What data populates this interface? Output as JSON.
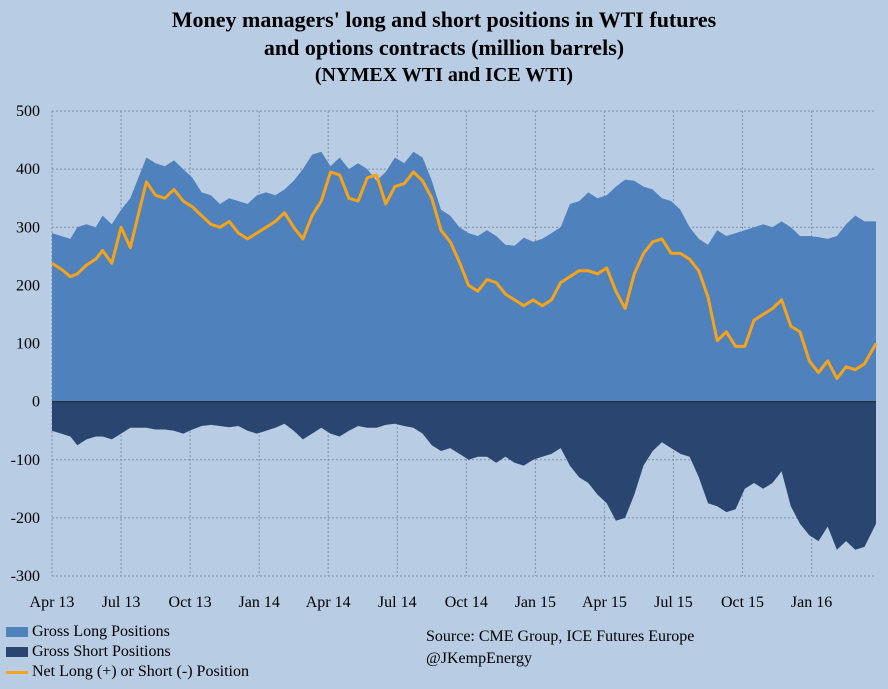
{
  "title_lines": [
    "Money managers' long and short positions in WTI futures",
    "and options contracts (million barrels)"
  ],
  "subtitle": "(NYMEX WTI and ICE WTI)",
  "source": "Source:  CME Group, ICE Futures Europe",
  "handle": "@JKempEnergy",
  "colors": {
    "background": "#b8cce4",
    "long": "#4f81bd",
    "short": "#2a4670",
    "net": "#f5a31b",
    "grid": "#7f8fa6"
  },
  "chart_data": {
    "type": "area",
    "xlabel": "",
    "ylabel": "",
    "ylim": [
      -300,
      500
    ],
    "yticks": [
      -300,
      -200,
      -100,
      0,
      100,
      200,
      300,
      400,
      500
    ],
    "grid": true,
    "legend_position": "bottom-left",
    "x_tick_labels": [
      "Apr 13",
      "Jul 13",
      "Oct 13",
      "Jan 14",
      "Apr 14",
      "Jul 14",
      "Oct 14",
      "Jan 15",
      "Apr 15",
      "Jul 15",
      "Oct 15",
      "Jan 16"
    ],
    "x_tick_months": [
      0,
      3,
      6,
      9,
      12,
      15,
      18,
      21,
      24,
      27,
      30,
      33
    ],
    "x_range_months": [
      0,
      35.8
    ],
    "series": [
      {
        "name": "Gross Long Positions",
        "kind": "area",
        "points": [
          [
            0,
            290
          ],
          [
            0.4,
            285
          ],
          [
            0.8,
            280
          ],
          [
            1.1,
            300
          ],
          [
            1.5,
            305
          ],
          [
            1.9,
            300
          ],
          [
            2.2,
            320
          ],
          [
            2.6,
            305
          ],
          [
            3.0,
            330
          ],
          [
            3.4,
            350
          ],
          [
            3.8,
            390
          ],
          [
            4.1,
            420
          ],
          [
            4.5,
            410
          ],
          [
            4.9,
            405
          ],
          [
            5.3,
            415
          ],
          [
            5.7,
            400
          ],
          [
            6.1,
            385
          ],
          [
            6.5,
            360
          ],
          [
            6.9,
            355
          ],
          [
            7.3,
            340
          ],
          [
            7.7,
            350
          ],
          [
            8.1,
            345
          ],
          [
            8.5,
            340
          ],
          [
            8.9,
            355
          ],
          [
            9.3,
            360
          ],
          [
            9.7,
            355
          ],
          [
            10.1,
            365
          ],
          [
            10.5,
            380
          ],
          [
            10.9,
            400
          ],
          [
            11.3,
            425
          ],
          [
            11.7,
            430
          ],
          [
            12.1,
            405
          ],
          [
            12.5,
            420
          ],
          [
            12.9,
            400
          ],
          [
            13.3,
            410
          ],
          [
            13.7,
            400
          ],
          [
            14.1,
            380
          ],
          [
            14.5,
            395
          ],
          [
            14.9,
            420
          ],
          [
            15.3,
            410
          ],
          [
            15.7,
            430
          ],
          [
            16.1,
            420
          ],
          [
            16.5,
            380
          ],
          [
            16.9,
            330
          ],
          [
            17.3,
            320
          ],
          [
            17.7,
            300
          ],
          [
            18.1,
            290
          ],
          [
            18.5,
            285
          ],
          [
            18.9,
            295
          ],
          [
            19.3,
            285
          ],
          [
            19.7,
            270
          ],
          [
            20.1,
            268
          ],
          [
            20.5,
            282
          ],
          [
            20.9,
            275
          ],
          [
            21.3,
            280
          ],
          [
            21.7,
            290
          ],
          [
            22.1,
            300
          ],
          [
            22.5,
            340
          ],
          [
            22.9,
            345
          ],
          [
            23.3,
            360
          ],
          [
            23.7,
            350
          ],
          [
            24.1,
            355
          ],
          [
            24.5,
            370
          ],
          [
            24.9,
            382
          ],
          [
            25.3,
            380
          ],
          [
            25.7,
            370
          ],
          [
            26.1,
            365
          ],
          [
            26.5,
            350
          ],
          [
            26.9,
            345
          ],
          [
            27.3,
            330
          ],
          [
            27.7,
            300
          ],
          [
            28.1,
            280
          ],
          [
            28.5,
            270
          ],
          [
            28.9,
            295
          ],
          [
            29.3,
            285
          ],
          [
            29.7,
            290
          ],
          [
            30.1,
            295
          ],
          [
            30.5,
            300
          ],
          [
            30.9,
            305
          ],
          [
            31.3,
            300
          ],
          [
            31.7,
            310
          ],
          [
            32.1,
            300
          ],
          [
            32.5,
            285
          ],
          [
            32.9,
            285
          ],
          [
            33.3,
            283
          ],
          [
            33.7,
            280
          ],
          [
            34.1,
            285
          ],
          [
            34.5,
            305
          ],
          [
            34.9,
            320
          ],
          [
            35.3,
            310
          ],
          [
            35.8,
            310
          ]
        ]
      },
      {
        "name": "Gross Short Positions",
        "kind": "area",
        "points": [
          [
            0,
            -50
          ],
          [
            0.4,
            -55
          ],
          [
            0.8,
            -60
          ],
          [
            1.1,
            -75
          ],
          [
            1.5,
            -65
          ],
          [
            1.9,
            -60
          ],
          [
            2.2,
            -60
          ],
          [
            2.6,
            -65
          ],
          [
            3.0,
            -55
          ],
          [
            3.4,
            -45
          ],
          [
            3.8,
            -45
          ],
          [
            4.1,
            -45
          ],
          [
            4.5,
            -48
          ],
          [
            4.9,
            -48
          ],
          [
            5.3,
            -50
          ],
          [
            5.7,
            -55
          ],
          [
            6.1,
            -48
          ],
          [
            6.5,
            -42
          ],
          [
            6.9,
            -40
          ],
          [
            7.3,
            -42
          ],
          [
            7.7,
            -44
          ],
          [
            8.1,
            -42
          ],
          [
            8.5,
            -50
          ],
          [
            8.9,
            -55
          ],
          [
            9.3,
            -50
          ],
          [
            9.7,
            -45
          ],
          [
            10.1,
            -38
          ],
          [
            10.5,
            -50
          ],
          [
            10.9,
            -65
          ],
          [
            11.3,
            -55
          ],
          [
            11.7,
            -45
          ],
          [
            12.1,
            -55
          ],
          [
            12.5,
            -60
          ],
          [
            12.9,
            -50
          ],
          [
            13.3,
            -42
          ],
          [
            13.7,
            -45
          ],
          [
            14.1,
            -45
          ],
          [
            14.5,
            -40
          ],
          [
            14.9,
            -38
          ],
          [
            15.3,
            -42
          ],
          [
            15.7,
            -45
          ],
          [
            16.1,
            -55
          ],
          [
            16.5,
            -75
          ],
          [
            16.9,
            -85
          ],
          [
            17.3,
            -80
          ],
          [
            17.7,
            -90
          ],
          [
            18.1,
            -100
          ],
          [
            18.5,
            -95
          ],
          [
            18.9,
            -95
          ],
          [
            19.3,
            -105
          ],
          [
            19.7,
            -95
          ],
          [
            20.1,
            -105
          ],
          [
            20.5,
            -110
          ],
          [
            20.9,
            -100
          ],
          [
            21.3,
            -95
          ],
          [
            21.7,
            -90
          ],
          [
            22.1,
            -80
          ],
          [
            22.5,
            -110
          ],
          [
            22.9,
            -130
          ],
          [
            23.3,
            -140
          ],
          [
            23.7,
            -160
          ],
          [
            24.1,
            -175
          ],
          [
            24.5,
            -205
          ],
          [
            24.9,
            -200
          ],
          [
            25.3,
            -160
          ],
          [
            25.7,
            -110
          ],
          [
            26.1,
            -85
          ],
          [
            26.5,
            -70
          ],
          [
            26.9,
            -80
          ],
          [
            27.3,
            -90
          ],
          [
            27.7,
            -95
          ],
          [
            28.1,
            -130
          ],
          [
            28.5,
            -175
          ],
          [
            28.9,
            -180
          ],
          [
            29.3,
            -190
          ],
          [
            29.7,
            -185
          ],
          [
            30.1,
            -150
          ],
          [
            30.5,
            -140
          ],
          [
            30.9,
            -150
          ],
          [
            31.3,
            -140
          ],
          [
            31.7,
            -120
          ],
          [
            32.1,
            -180
          ],
          [
            32.5,
            -210
          ],
          [
            32.9,
            -230
          ],
          [
            33.3,
            -240
          ],
          [
            33.7,
            -215
          ],
          [
            34.1,
            -255
          ],
          [
            34.5,
            -240
          ],
          [
            34.9,
            -255
          ],
          [
            35.3,
            -250
          ],
          [
            35.8,
            -210
          ]
        ]
      },
      {
        "name": "Net Long (+) or Short (-) Position",
        "kind": "line",
        "points": [
          [
            0,
            238
          ],
          [
            0.4,
            228
          ],
          [
            0.8,
            215
          ],
          [
            1.1,
            220
          ],
          [
            1.5,
            235
          ],
          [
            1.9,
            245
          ],
          [
            2.2,
            260
          ],
          [
            2.6,
            238
          ],
          [
            3.0,
            300
          ],
          [
            3.4,
            265
          ],
          [
            3.8,
            330
          ],
          [
            4.1,
            378
          ],
          [
            4.5,
            355
          ],
          [
            4.9,
            350
          ],
          [
            5.3,
            365
          ],
          [
            5.7,
            345
          ],
          [
            6.1,
            335
          ],
          [
            6.5,
            320
          ],
          [
            6.9,
            305
          ],
          [
            7.3,
            300
          ],
          [
            7.7,
            310
          ],
          [
            8.1,
            290
          ],
          [
            8.5,
            280
          ],
          [
            8.9,
            290
          ],
          [
            9.3,
            300
          ],
          [
            9.7,
            310
          ],
          [
            10.1,
            325
          ],
          [
            10.5,
            300
          ],
          [
            10.9,
            280
          ],
          [
            11.3,
            320
          ],
          [
            11.7,
            345
          ],
          [
            12.1,
            395
          ],
          [
            12.5,
            390
          ],
          [
            12.9,
            350
          ],
          [
            13.3,
            345
          ],
          [
            13.7,
            385
          ],
          [
            14.1,
            390
          ],
          [
            14.5,
            340
          ],
          [
            14.9,
            370
          ],
          [
            15.3,
            375
          ],
          [
            15.7,
            395
          ],
          [
            16.1,
            380
          ],
          [
            16.5,
            350
          ],
          [
            16.9,
            295
          ],
          [
            17.3,
            275
          ],
          [
            17.7,
            240
          ],
          [
            18.1,
            200
          ],
          [
            18.5,
            190
          ],
          [
            18.9,
            210
          ],
          [
            19.3,
            205
          ],
          [
            19.7,
            185
          ],
          [
            20.1,
            175
          ],
          [
            20.5,
            165
          ],
          [
            20.9,
            175
          ],
          [
            21.3,
            165
          ],
          [
            21.7,
            175
          ],
          [
            22.1,
            205
          ],
          [
            22.5,
            215
          ],
          [
            22.9,
            225
          ],
          [
            23.3,
            225
          ],
          [
            23.7,
            220
          ],
          [
            24.1,
            230
          ],
          [
            24.5,
            190
          ],
          [
            24.9,
            160
          ],
          [
            25.3,
            220
          ],
          [
            25.7,
            255
          ],
          [
            26.1,
            275
          ],
          [
            26.5,
            280
          ],
          [
            26.9,
            255
          ],
          [
            27.3,
            255
          ],
          [
            27.7,
            245
          ],
          [
            28.1,
            225
          ],
          [
            28.5,
            180
          ],
          [
            28.9,
            105
          ],
          [
            29.3,
            120
          ],
          [
            29.7,
            95
          ],
          [
            30.1,
            95
          ],
          [
            30.5,
            140
          ],
          [
            30.9,
            150
          ],
          [
            31.3,
            160
          ],
          [
            31.7,
            175
          ],
          [
            32.1,
            130
          ],
          [
            32.5,
            120
          ],
          [
            32.9,
            70
          ],
          [
            33.3,
            50
          ],
          [
            33.7,
            70
          ],
          [
            34.1,
            40
          ],
          [
            34.5,
            60
          ],
          [
            34.9,
            55
          ],
          [
            35.3,
            65
          ],
          [
            35.8,
            100
          ]
        ]
      }
    ]
  }
}
